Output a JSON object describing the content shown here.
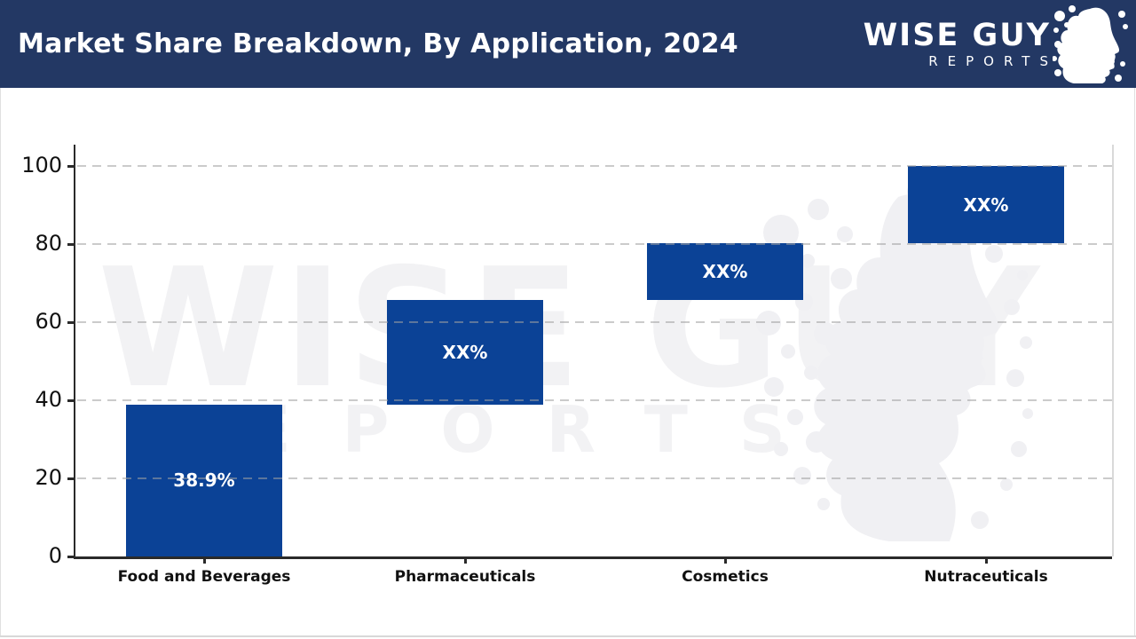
{
  "header": {
    "title": "Market Share Breakdown, By Application, 2024",
    "bg_color": "#233864",
    "logo": {
      "name": "WISE GUY",
      "sub": "REPORTS"
    }
  },
  "watermark": {
    "line1": "WISE GUY",
    "line2": "REPORTS"
  },
  "chart_data": {
    "type": "bar",
    "subtype": "waterfall",
    "title": "Market Share Breakdown, By Application, 2024",
    "categories": [
      "Food and Beverages",
      "Pharmaceuticals",
      "Cosmetics",
      "Nutraceuticals"
    ],
    "segments": [
      {
        "category": "Food and Beverages",
        "start": 0,
        "end": 38.9,
        "label": "38.9%"
      },
      {
        "category": "Pharmaceuticals",
        "start": 38.9,
        "end": 65.7,
        "label": "XX%"
      },
      {
        "category": "Cosmetics",
        "start": 65.7,
        "end": 80.2,
        "label": "XX%"
      },
      {
        "category": "Nutraceuticals",
        "start": 80.2,
        "end": 100,
        "label": "XX%"
      }
    ],
    "xlabel": "",
    "ylabel": "",
    "ylim": [
      0,
      105
    ],
    "yticks": [
      0,
      20,
      40,
      60,
      80,
      100
    ],
    "grid": true,
    "grid_style": "dashed",
    "legend_position": null,
    "bar_color": "#0b4296",
    "value_label_color": "#ffffff",
    "axis_color": "#2a2a2a"
  }
}
